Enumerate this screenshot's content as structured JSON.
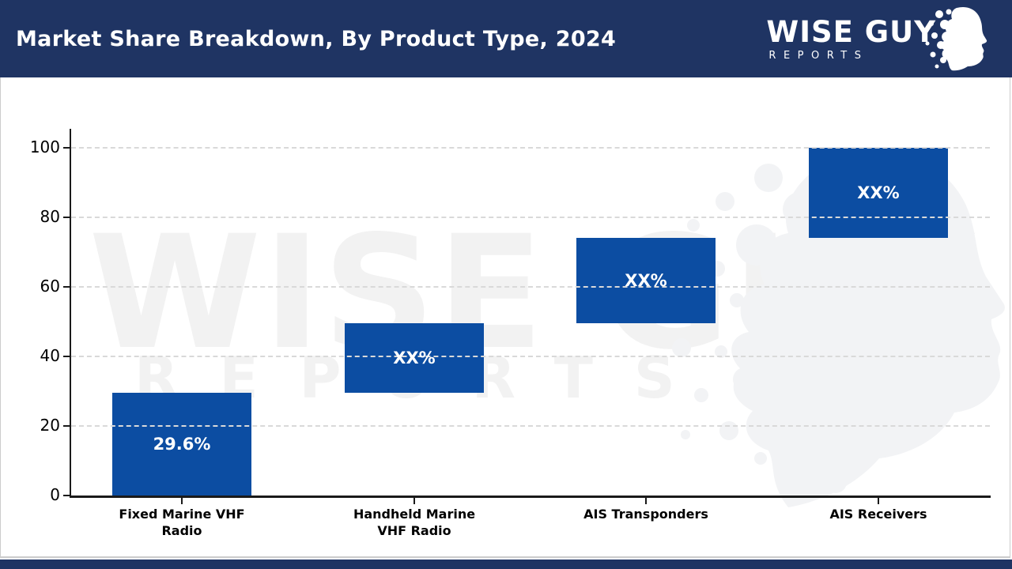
{
  "header": {
    "title": "Market Share Breakdown, By Product Type, 2024",
    "logo": {
      "line1": "WISE GUY",
      "line2": "REPORTS"
    }
  },
  "watermark": {
    "line1": "WISE GUY",
    "line2": "REPORTS"
  },
  "chart_data": {
    "type": "bar",
    "subtype": "waterfall",
    "title": "Market Share Breakdown, By Product Type, 2024",
    "categories": [
      "Fixed Marine VHF Radio",
      "Handheld Marine VHF Radio",
      "AIS Transponders",
      "AIS Receivers"
    ],
    "categories_wrapped": [
      [
        "Fixed Marine VHF",
        "Radio"
      ],
      [
        "Handheld Marine",
        "VHF Radio"
      ],
      [
        "AIS Transponders"
      ],
      [
        "AIS Receivers"
      ]
    ],
    "segments": [
      {
        "category": "Fixed Marine VHF Radio",
        "start": 0,
        "end": 29.6,
        "label": "29.6%"
      },
      {
        "category": "Handheld Marine VHF Radio",
        "start": 29.6,
        "end": 49.5,
        "label": "XX%"
      },
      {
        "category": "AIS Transponders",
        "start": 49.5,
        "end": 74.0,
        "label": "XX%"
      },
      {
        "category": "AIS Receivers",
        "start": 74.0,
        "end": 100.0,
        "label": "XX%"
      }
    ],
    "yticks": [
      0,
      20,
      40,
      60,
      80,
      100
    ],
    "ylim": [
      0,
      105
    ],
    "xlabel": "",
    "ylabel": "",
    "grid": true,
    "grid_style": "dashed",
    "legend": "none"
  },
  "colors": {
    "header_bg": "#1f3463",
    "footer_bg": "#1f3463",
    "bar_fill": "#0c4da2",
    "bar_label": "#ffffff",
    "grid_line": "#d9d9d9",
    "axis_line": "#1a1a1a",
    "watermark": "#f2f2f2",
    "frame_border": "#cccccc"
  }
}
